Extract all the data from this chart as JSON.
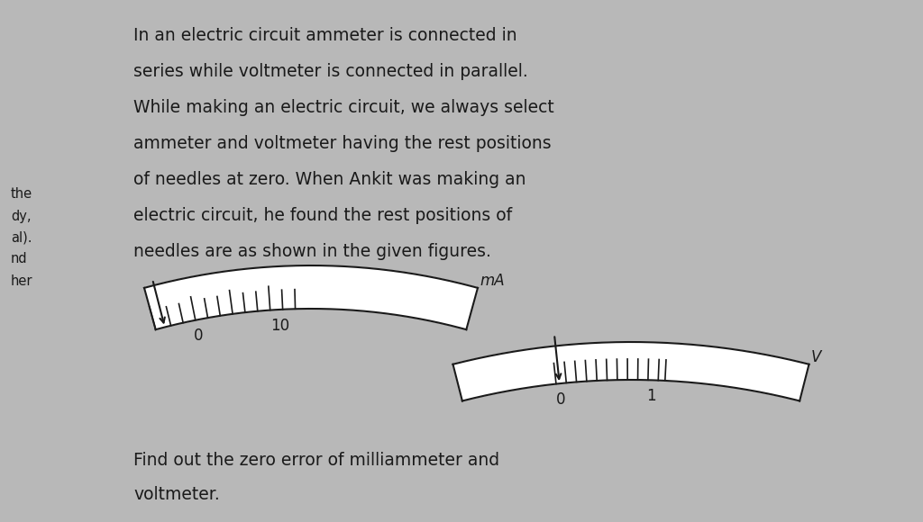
{
  "bg_color": "#b8b8b8",
  "text_color": "#1a1a1a",
  "title_lines": [
    "In an electric circuit ammeter is connected in",
    "series while voltmeter is connected in parallel.",
    "While making an electric circuit, we always select",
    "ammeter and voltmeter having the rest positions",
    "of needles at zero. When Ankit was making an",
    "electric circuit, he found the rest positions of",
    "needles are as shown in the given figures."
  ],
  "footer_lines": [
    "Find out the zero error of milliammeter and",
    "voltmeter."
  ],
  "left_margin_labels": [
    "her",
    "nd",
    "al).",
    "dy,",
    "the"
  ],
  "left_margin_y": [
    3.12,
    2.88,
    2.64,
    2.4,
    2.16
  ],
  "ammeter_label": "mA",
  "voltmeter_label": "V",
  "ammeter_zero_label": "0",
  "ammeter_ten_label": "10",
  "voltmeter_zero_label": "0",
  "voltmeter_one_label": "1",
  "title_font_size": 13.5,
  "footer_font_size": 13.5
}
